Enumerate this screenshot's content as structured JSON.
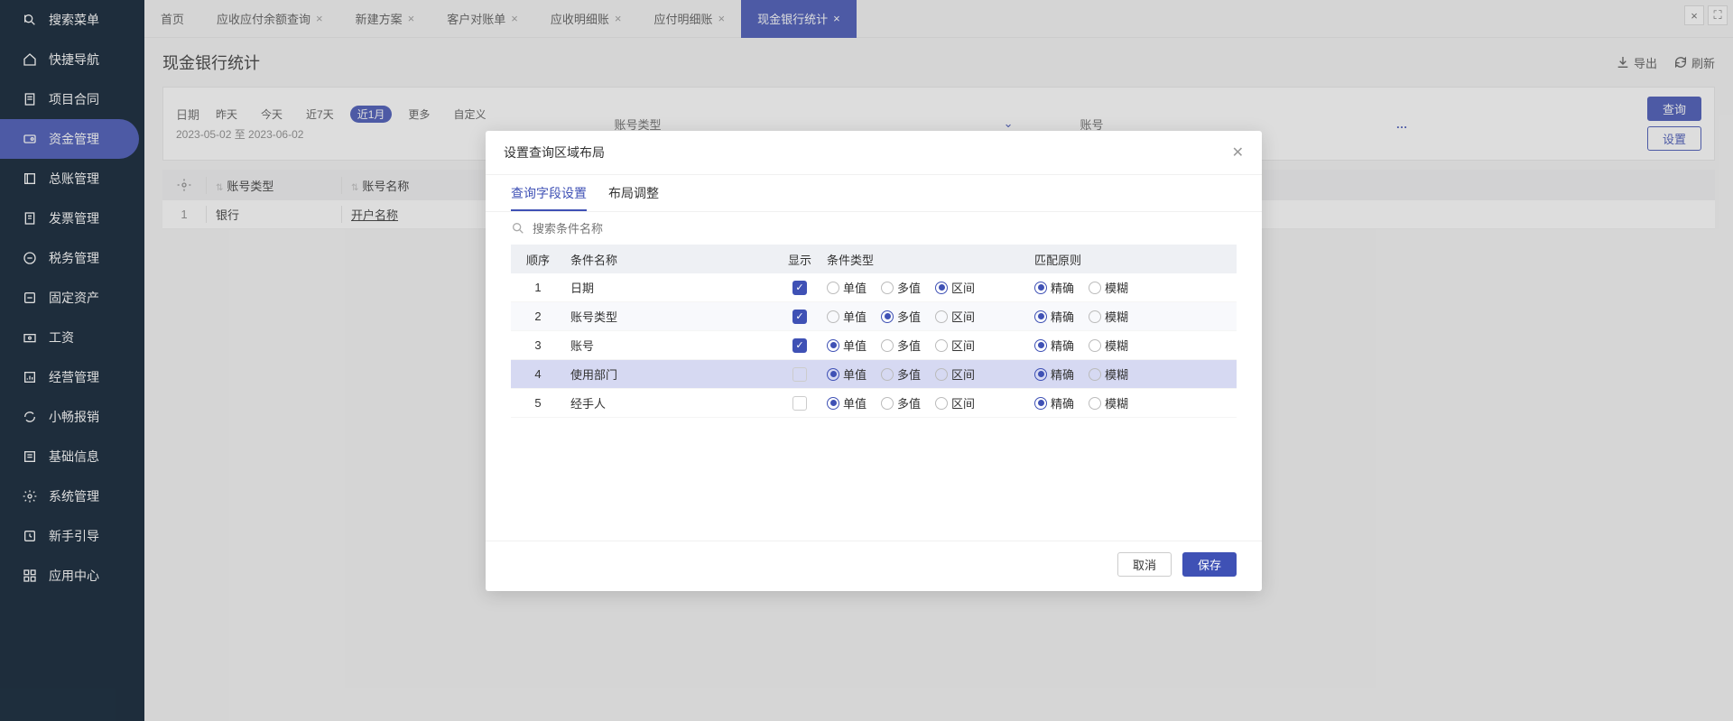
{
  "sidebar": {
    "items": [
      {
        "label": "搜索菜单"
      },
      {
        "label": "快捷导航"
      },
      {
        "label": "项目合同"
      },
      {
        "label": "资金管理"
      },
      {
        "label": "总账管理"
      },
      {
        "label": "发票管理"
      },
      {
        "label": "税务管理"
      },
      {
        "label": "固定资产"
      },
      {
        "label": "工资"
      },
      {
        "label": "经营管理"
      },
      {
        "label": "小畅报销"
      },
      {
        "label": "基础信息"
      },
      {
        "label": "系统管理"
      },
      {
        "label": "新手引导"
      },
      {
        "label": "应用中心"
      }
    ],
    "active_index": 3
  },
  "tabs": {
    "items": [
      {
        "label": "首页",
        "closable": false
      },
      {
        "label": "应收应付余额查询",
        "closable": true
      },
      {
        "label": "新建方案",
        "closable": true
      },
      {
        "label": "客户对账单",
        "closable": true
      },
      {
        "label": "应收明细账",
        "closable": true
      },
      {
        "label": "应付明细账",
        "closable": true
      },
      {
        "label": "现金银行统计",
        "closable": true
      }
    ],
    "active_index": 6
  },
  "page": {
    "title": "现金银行统计",
    "export_label": "导出",
    "refresh_label": "刷新"
  },
  "filter": {
    "date_label": "日期",
    "chips": [
      "昨天",
      "今天",
      "近7天",
      "近1月",
      "更多",
      "自定义"
    ],
    "chip_active_index": 3,
    "date_range": "2023-05-02 至 2023-06-02",
    "acct_type_label": "账号类型",
    "acct_no_label": "账号",
    "query_btn": "查询",
    "settings_btn": "设置"
  },
  "grid": {
    "columns": [
      "",
      "账号类型",
      "账号名称"
    ],
    "rows": [
      {
        "idx": "1",
        "type": "银行",
        "name": "开户名称"
      }
    ]
  },
  "modal": {
    "title": "设置查询区域布局",
    "tabs": [
      "查询字段设置",
      "布局调整"
    ],
    "tab_active": 0,
    "search_placeholder": "搜索条件名称",
    "columns": [
      "顺序",
      "条件名称",
      "显示",
      "条件类型",
      "匹配原则"
    ],
    "type_options": [
      "单值",
      "多值",
      "区间"
    ],
    "match_options": [
      "精确",
      "模糊"
    ],
    "rows": [
      {
        "order": "1",
        "name": "日期",
        "show": true,
        "type": 2,
        "match": 0
      },
      {
        "order": "2",
        "name": "账号类型",
        "show": true,
        "type": 1,
        "match": 0
      },
      {
        "order": "3",
        "name": "账号",
        "show": true,
        "type": 0,
        "match": 0
      },
      {
        "order": "4",
        "name": "使用部门",
        "show": false,
        "type": 0,
        "match": 0
      },
      {
        "order": "5",
        "name": "经手人",
        "show": false,
        "type": 0,
        "match": 0
      }
    ],
    "highlight_row": 3,
    "cancel": "取消",
    "save": "保存"
  },
  "colors": {
    "primary": "#3f51b5",
    "sidebar_bg": "#001529"
  }
}
